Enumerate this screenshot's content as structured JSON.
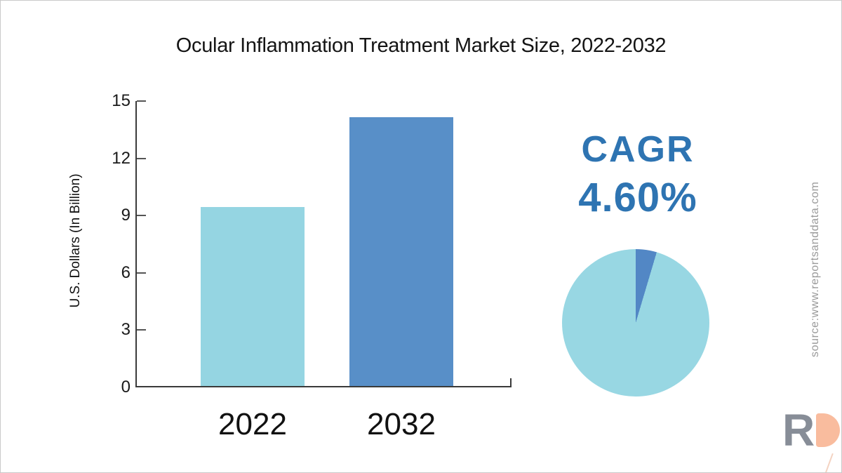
{
  "title": "Ocular Inflammation Treatment Market Size, 2022-2032",
  "source_note": "source:www.reportsanddata.com",
  "cagr": {
    "label": "CAGR",
    "value_label": "4.60%",
    "percent": 4.6
  },
  "logo": {
    "letter_r": "R",
    "letter_d": "D"
  },
  "colors": {
    "accent_blue": "#2e74b2",
    "bar_2022": "#95d5e2",
    "bar_2032": "#588fc8",
    "pie_slice": "#5287c5",
    "pie_remainder": "#98d7e3",
    "axis": "#3a3a3a",
    "source_text": "#9a9a9a",
    "logo_gray": "#878d97",
    "logo_peach": "#f9bc9e"
  },
  "chart_data": [
    {
      "type": "bar",
      "title": "Ocular Inflammation Treatment Market Size, 2022-2032",
      "categories": [
        "2022",
        "2032"
      ],
      "values": [
        9.4,
        14.1
      ],
      "xlabel": "",
      "ylabel": "U.S. Dollars (In Billion)",
      "ylim": [
        0,
        15
      ],
      "yticks": [
        0,
        3,
        6,
        9,
        12,
        15
      ],
      "bar_colors": [
        "#95d5e2",
        "#588fc8"
      ],
      "grid": false,
      "legend_position": "none"
    },
    {
      "type": "pie",
      "slices": [
        {
          "label": "CAGR 4.60%",
          "value": 4.6,
          "color": "#5287c5"
        },
        {
          "label": "remainder",
          "value": 95.4,
          "color": "#98d7e3"
        }
      ],
      "start_angle_deg": 0,
      "legend_position": "none"
    }
  ]
}
